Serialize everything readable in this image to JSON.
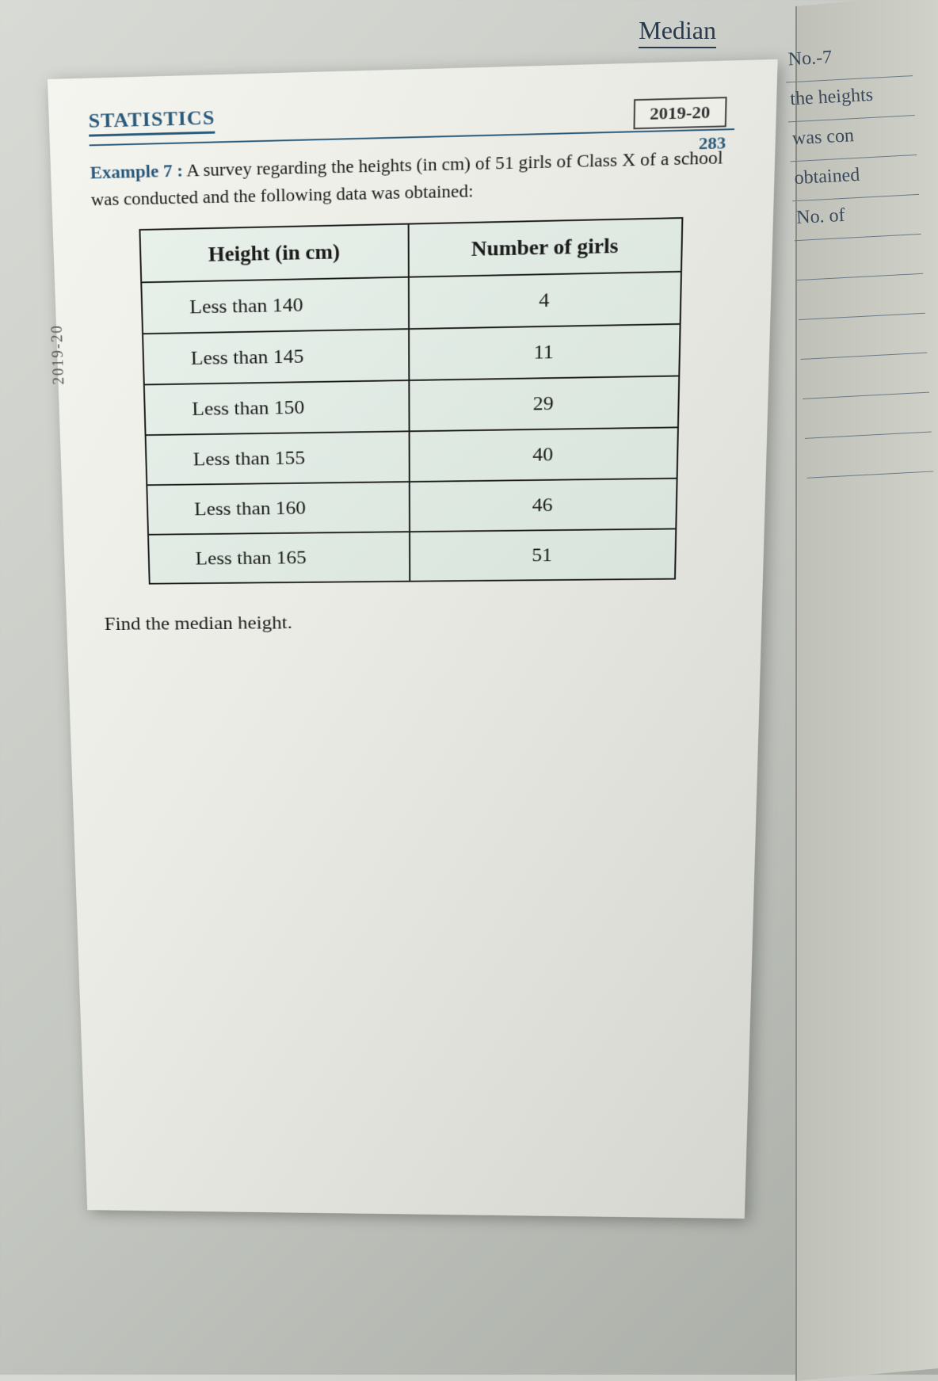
{
  "handwritten": {
    "median": "Median",
    "no7": "No.-7",
    "line1": "the heights",
    "line2": "was con",
    "line3": "obtained",
    "line4": "No. of"
  },
  "section_title": "STATISTICS",
  "year_box": "2019-20",
  "page_number": "283",
  "side_year": "2019-20",
  "example": {
    "label": "Example 7 :",
    "text": "A survey regarding the heights (in cm) of 51 girls of Class X of a school was conducted and the following data was obtained:"
  },
  "table": {
    "headers": [
      "Height (in cm)",
      "Number of girls"
    ],
    "rows": [
      [
        "Less than 140",
        "4"
      ],
      [
        "Less than 145",
        "11"
      ],
      [
        "Less than 150",
        "29"
      ],
      [
        "Less than 155",
        "40"
      ],
      [
        "Less than 160",
        "46"
      ],
      [
        "Less than 165",
        "51"
      ]
    ],
    "bg_color": "#dde8df",
    "border_color": "#1a1a1a",
    "header_fontsize": 27,
    "cell_fontsize": 26
  },
  "footer": "Find the median height."
}
